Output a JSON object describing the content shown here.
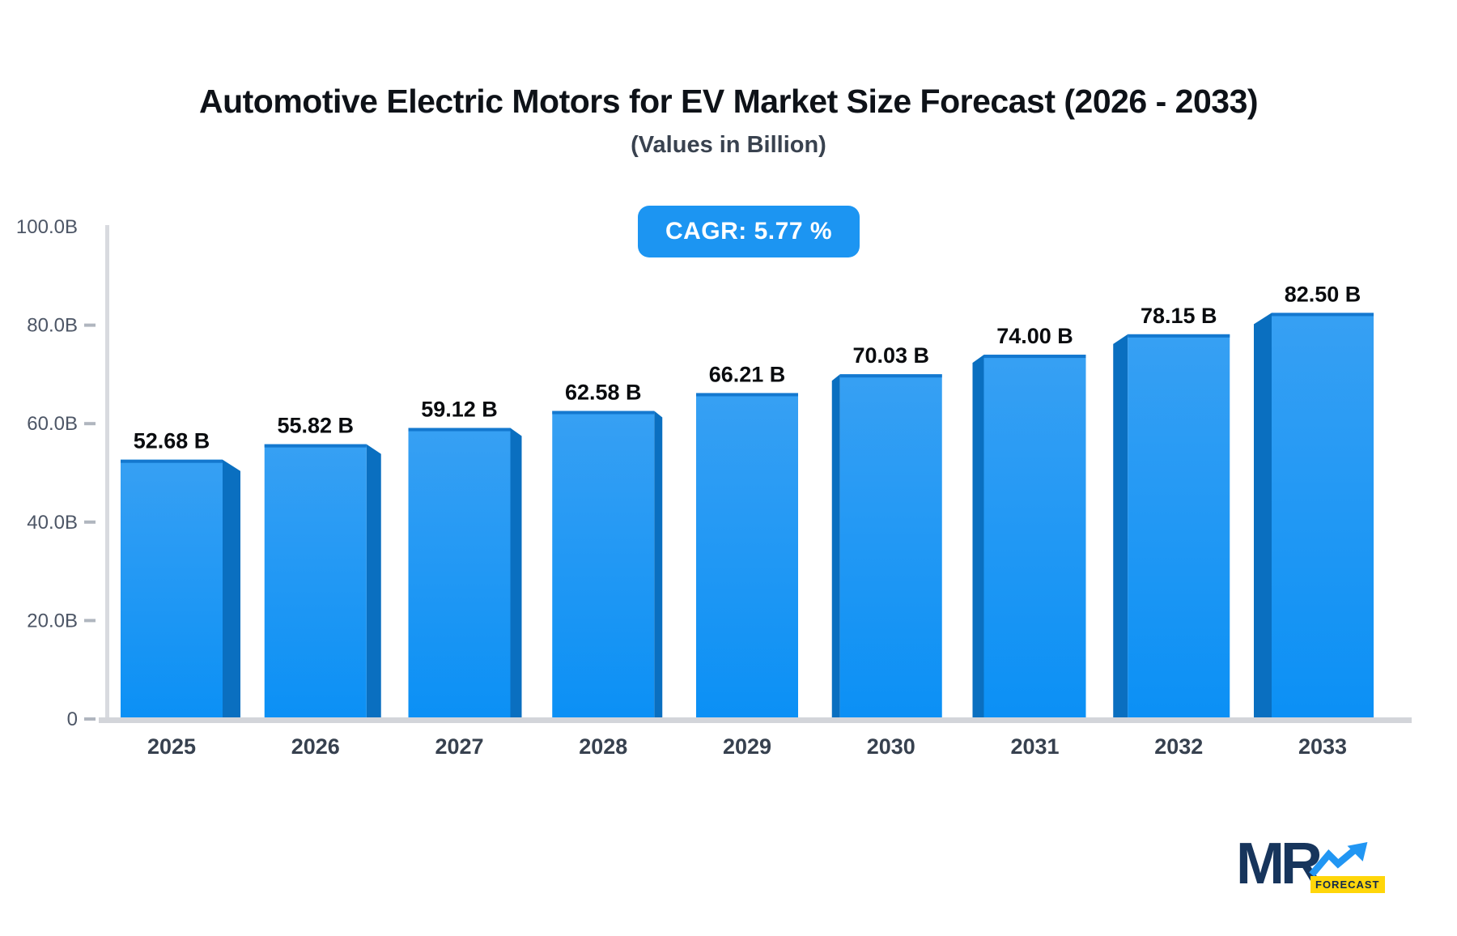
{
  "chart_data": {
    "type": "bar",
    "title": "Automotive Electric Motors for EV Market Size Forecast (2026 - 2033)",
    "subtitle": "(Values in Billion)",
    "cagr_label": "CAGR: 5.77 %",
    "categories": [
      "2025",
      "2026",
      "2027",
      "2028",
      "2029",
      "2030",
      "2031",
      "2032",
      "2033"
    ],
    "values": [
      52.68,
      55.82,
      59.12,
      62.58,
      66.21,
      70.03,
      74.0,
      78.15,
      82.5
    ],
    "value_labels": [
      "52.68 B",
      "55.82 B",
      "59.12 B",
      "62.58 B",
      "66.21 B",
      "70.03 B",
      "74.00 B",
      "78.15 B",
      "82.50 B"
    ],
    "xlabel": "",
    "ylabel": "",
    "ylim": [
      0,
      100
    ],
    "y_ticks": [
      {
        "value": 100,
        "label": "100.0B",
        "tick_mark": false
      },
      {
        "value": 80,
        "label": "80.0B",
        "tick_mark": true
      },
      {
        "value": 60,
        "label": "60.0B",
        "tick_mark": true
      },
      {
        "value": 40,
        "label": "40.0B",
        "tick_mark": true
      },
      {
        "value": 20,
        "label": "20.0B",
        "tick_mark": true
      },
      {
        "value": 0,
        "label": "0",
        "tick_mark": true
      }
    ],
    "grid": false,
    "legend": false,
    "bar_style": "3d-extruded, depth toward center vanishing point",
    "colors": {
      "bar_front_top": "#37a0f3",
      "bar_front_bottom": "#0b90f5",
      "bar_side": "#0a6fc0",
      "bar_top_edge": "#1478cf",
      "axis_line": "#d8dadf",
      "baseline": "#d3d5da",
      "tick": "#b0b6bf",
      "y_label": "#4d5666",
      "x_label": "#37414f",
      "value_label": "#0a0c0f",
      "badge_bg": "#1c95f2",
      "badge_text": "#ffffff",
      "title": "#0e1218",
      "subtitle": "#39424f",
      "logo_navy": "#17355c",
      "logo_blue": "#2196f3",
      "logo_yellow": "#ffd60a"
    }
  },
  "logo": {
    "wordmark": "MR",
    "tagline": "FORECAST"
  }
}
